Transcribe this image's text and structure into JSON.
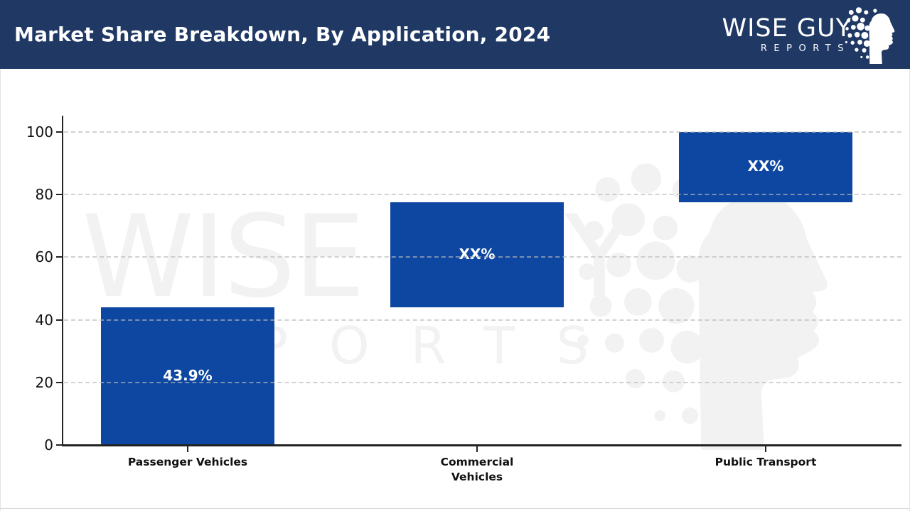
{
  "header": {
    "title": "Market Share Breakdown, By Application, 2024",
    "bg_color": "#1f3864",
    "logo": {
      "line1": "WISE GUY",
      "line2": "REPORTS"
    }
  },
  "watermark": {
    "line1": "WISE GUY",
    "line2": "REPORTS"
  },
  "chart_data": {
    "type": "bar",
    "variant": "waterfall",
    "title": "Market Share Breakdown, By Application, 2024",
    "categories": [
      "Passenger Vehicles",
      "Commercial Vehicles",
      "Public Transport"
    ],
    "category_lines": [
      [
        "Passenger Vehicles"
      ],
      [
        "Commercial",
        "Vehicles"
      ],
      [
        "Public Transport"
      ]
    ],
    "segments": [
      {
        "category": "Passenger Vehicles",
        "start": 0,
        "end": 43.9,
        "label": "43.9%"
      },
      {
        "category": "Commercial Vehicles",
        "start": 43.9,
        "end": 77.6,
        "label": "XX%"
      },
      {
        "category": "Public Transport",
        "start": 77.6,
        "end": 100,
        "label": "XX%"
      }
    ],
    "ylim": [
      0,
      100
    ],
    "yticks": [
      0,
      20,
      40,
      60,
      80,
      100
    ],
    "grid": "horizontal-dashed",
    "bar_color": "#0d47a1",
    "bar_label_color": "#ffffff",
    "axis_color": "#222222",
    "legend": "none"
  }
}
